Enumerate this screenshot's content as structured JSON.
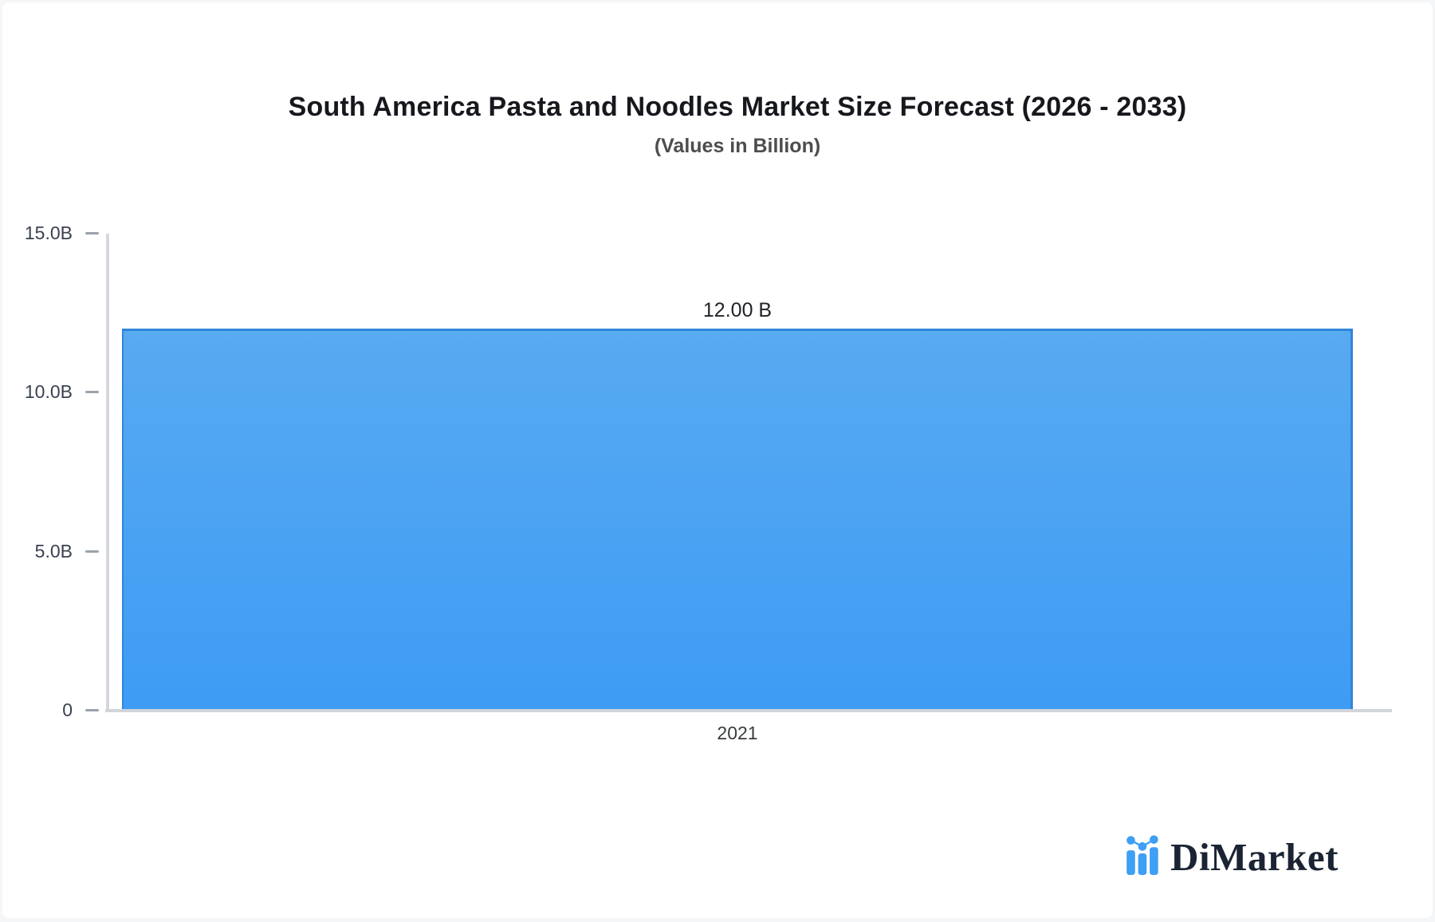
{
  "header": {
    "title": "South America Pasta and Noodles Market Size Forecast (2026 - 2033)",
    "subtitle": "(Values in Billion)"
  },
  "chart_data": {
    "type": "bar",
    "title": "South America Pasta and Noodles Market Size Forecast (2026 - 2033)",
    "subtitle": "(Values in Billion)",
    "categories": [
      "2021"
    ],
    "values": [
      12.0
    ],
    "value_labels": [
      "12.00 B"
    ],
    "xlabel": "",
    "ylabel": "",
    "ylim": [
      0,
      15
    ],
    "yticks": [
      {
        "value": 15,
        "label": "15.0B"
      },
      {
        "value": 10,
        "label": "10.0B"
      },
      {
        "value": 5,
        "label": "5.0B"
      },
      {
        "value": 0,
        "label": "0"
      }
    ],
    "grid": false,
    "legend_position": "none",
    "bar_gradient_top": "#58aaf1",
    "bar_gradient_bottom": "#3e9cf4",
    "bar_border_color": "#3185da",
    "axis_color": "#d2d5da",
    "tick_color": "#9aa1aa",
    "label_color": "#3a4150"
  },
  "logo": {
    "text": "DiMarket",
    "icon": "bar-chart-icon",
    "icon_color": "#3e9ff4",
    "text_color": "#1b2433"
  }
}
